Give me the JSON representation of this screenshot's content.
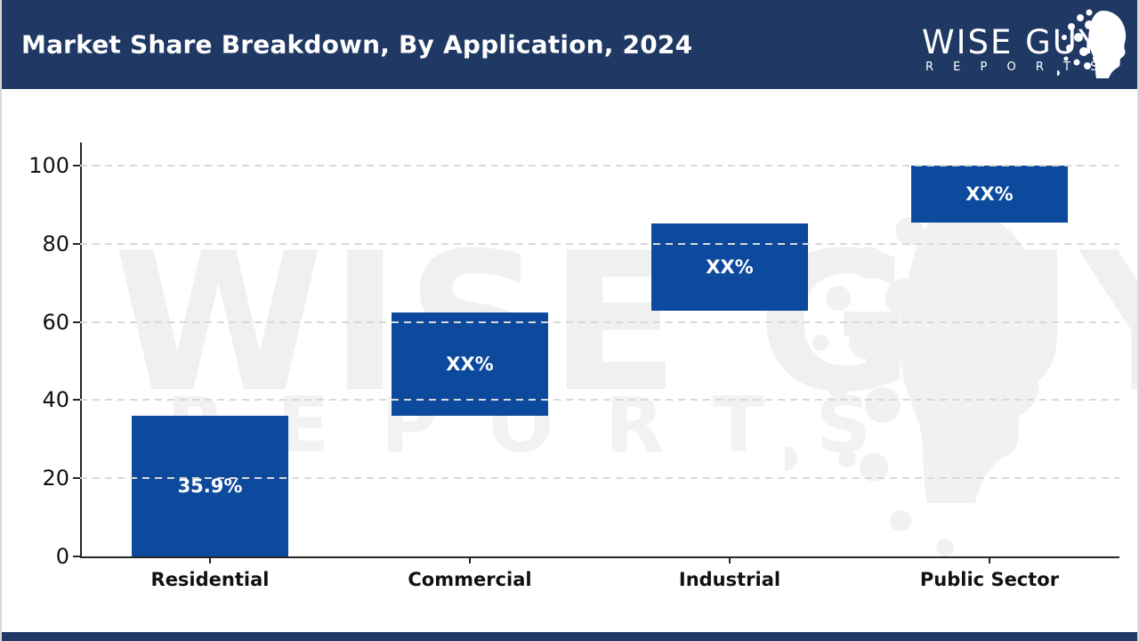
{
  "header": {
    "title": "Market Share Breakdown, By Application, 2024",
    "logo": {
      "line1": "WISE GUY",
      "line2": "R E P O R T S"
    }
  },
  "watermark": {
    "line1": "WISE GUY",
    "line2": "REPORTS"
  },
  "colors": {
    "header_bg": "#1f3864",
    "footer_bg": "#1f3864",
    "bar": "#0d4a9d",
    "grid": "#d9d9d9",
    "axis": "#262626",
    "bar_label_text": "#ffffff",
    "watermark": "#f0f0f0"
  },
  "chart_data": {
    "type": "bar",
    "subtype": "waterfall",
    "title": "Market Share Breakdown, By Application, 2024",
    "categories": [
      "Residential",
      "Commercial",
      "Industrial",
      "Public Sector"
    ],
    "segments": [
      {
        "category": "Residential",
        "start": 0,
        "end": 35.9,
        "label": "35.9%"
      },
      {
        "category": "Commercial",
        "start": 35.9,
        "end": 62.5,
        "label": "XX%"
      },
      {
        "category": "Industrial",
        "start": 62.9,
        "end": 85.2,
        "label": "XX%"
      },
      {
        "category": "Public Sector",
        "start": 85.4,
        "end": 100,
        "label": "XX%"
      }
    ],
    "ylim": [
      0,
      100
    ],
    "yticks": [
      0,
      20,
      40,
      60,
      80,
      100
    ],
    "xlabel": "",
    "ylabel": "",
    "grid": "horizontal-dashed-above-bars",
    "legend": "none"
  }
}
